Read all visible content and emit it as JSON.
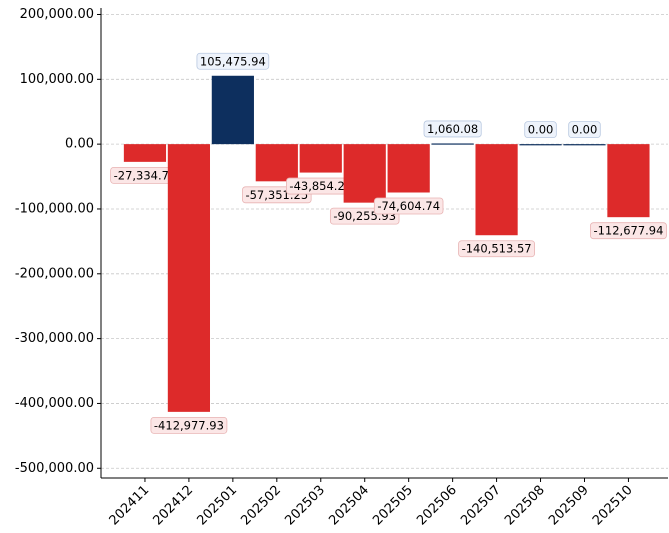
{
  "chart_data": {
    "type": "bar",
    "categories": [
      "202411",
      "202412",
      "202501",
      "202502",
      "202503",
      "202504",
      "202505",
      "202506",
      "202507",
      "202508",
      "202509",
      "202510"
    ],
    "values": [
      -27334.76,
      -412977.93,
      105475.94,
      -57351.25,
      -43854.21,
      -90255.93,
      -74604.74,
      1060.08,
      -140513.57,
      0,
      0,
      -112677.94
    ],
    "value_labels": [
      "-27,334.76",
      "-412,977.93",
      "105,475.94",
      "-57,351.25",
      "-43,854.21",
      "-90,255.93",
      "-74,604.74",
      "1,060.08",
      "-140,513.57",
      "0.00",
      "0.00",
      "-112,677.94"
    ],
    "colors": {
      "positive": "#0d2f5e",
      "negative": "#dd2a2a"
    },
    "ylim": [
      -515000,
      210000
    ],
    "yticks": [
      {
        "value": -500000,
        "label": "-500,000.00"
      },
      {
        "value": -400000,
        "label": "-400,000.00"
      },
      {
        "value": -300000,
        "label": "-300,000.00"
      },
      {
        "value": -200000,
        "label": "-200,000.00"
      },
      {
        "value": -100000,
        "label": "-100,000.00"
      },
      {
        "value": 0,
        "label": "0.00"
      },
      {
        "value": 100000,
        "label": "100,000.00"
      },
      {
        "value": 200000,
        "label": "200,000.00"
      }
    ],
    "grid": true
  }
}
